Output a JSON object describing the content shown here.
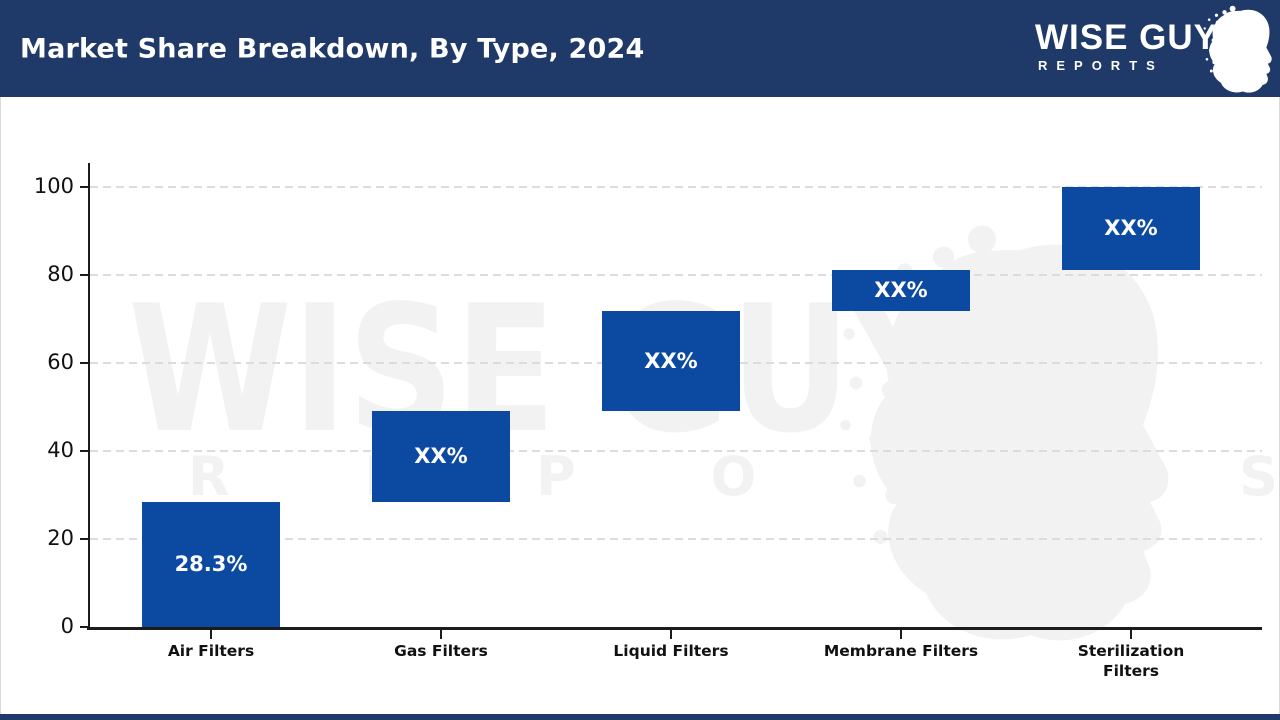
{
  "header": {
    "title": "Market Share Breakdown, By Type, 2024",
    "brand": {
      "line1": "WISE GUY",
      "line2": "REPORTS"
    }
  },
  "watermark": {
    "line1": "WISE GUY",
    "line2": "R E P O R T S"
  },
  "colors": {
    "header_bg": "#1f3a68",
    "bottom_bar": "#1f3a68",
    "bar_fill": "#0c4aa2",
    "bar_label": "#ffffff",
    "axis": "#1c1c1c",
    "gridline": "#dcdcdc",
    "watermark": "#f2f2f2"
  },
  "chart_data": {
    "type": "bar",
    "subtype": "waterfall",
    "title": "Market Share Breakdown, By Type, 2024",
    "xlabel": "",
    "ylabel": "",
    "ylim": [
      0,
      100
    ],
    "yticks": [
      0,
      20,
      40,
      60,
      80,
      100
    ],
    "grid": "horizontal-dashed",
    "legend": "none",
    "categories": [
      "Air Filters",
      "Gas Filters",
      "Liquid Filters",
      "Membrane Filters",
      "Sterilization Filters"
    ],
    "segments": [
      {
        "category": "Air Filters",
        "base": 0,
        "top": 28.3,
        "value": 28.3,
        "label": "28.3%"
      },
      {
        "category": "Gas Filters",
        "base": 28.3,
        "top": 49.1,
        "value": 20.8,
        "label": "XX%"
      },
      {
        "category": "Liquid Filters",
        "base": 49.1,
        "top": 71.8,
        "value": 22.7,
        "label": "XX%"
      },
      {
        "category": "Membrane Filters",
        "base": 71.8,
        "top": 81.1,
        "value": 9.3,
        "label": "XX%"
      },
      {
        "category": "Sterilization Filters",
        "base": 81.1,
        "top": 100,
        "value": 18.9,
        "label": "XX%"
      }
    ]
  }
}
